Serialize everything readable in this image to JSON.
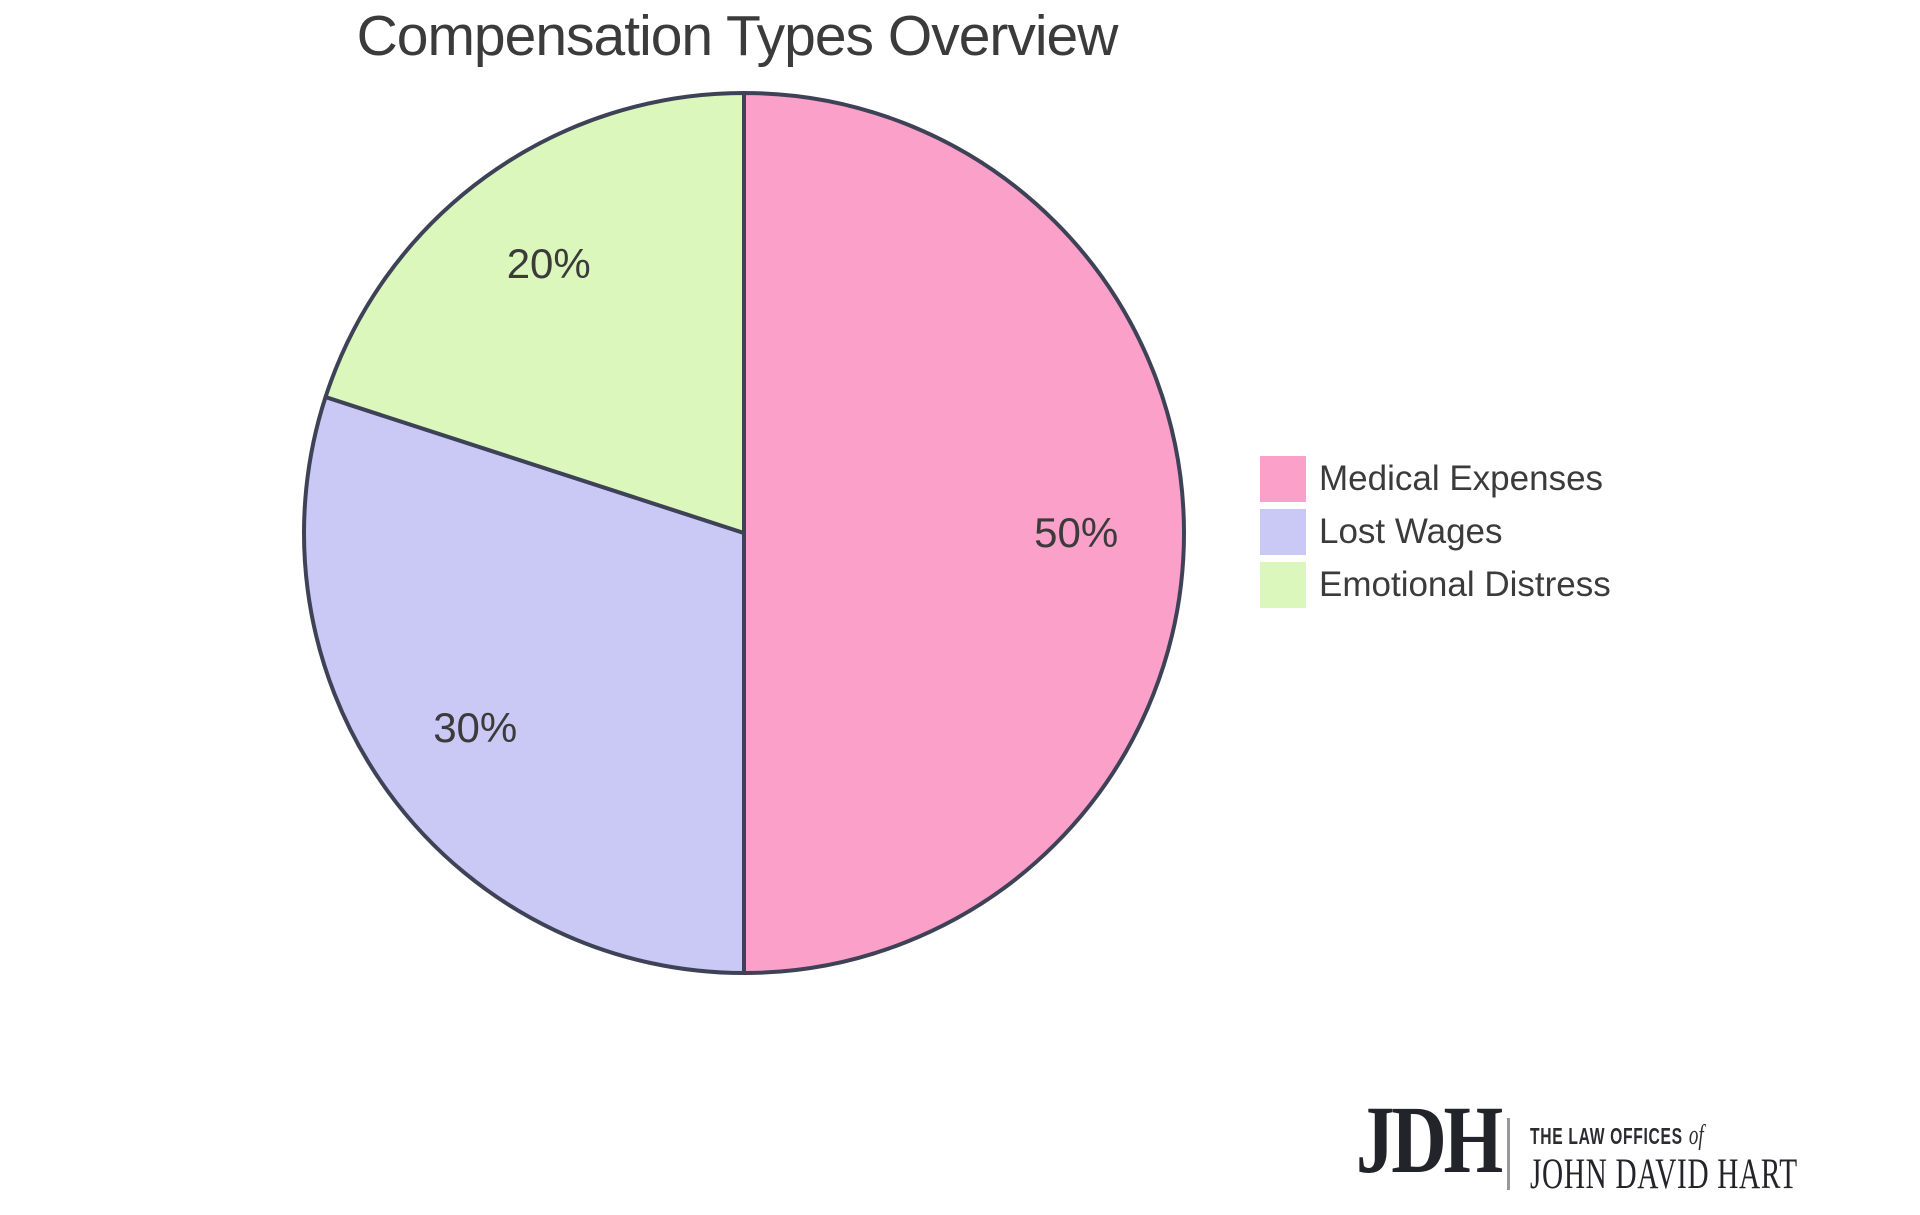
{
  "chart_data": {
    "type": "pie",
    "title": "Compensation Types Overview",
    "start_angle": "top",
    "direction": "clockwise",
    "slices": [
      {
        "label": "Medical Expenses",
        "value": 50,
        "pct_label": "50%",
        "color": "#FBA1C9"
      },
      {
        "label": "Lost Wages",
        "value": 30,
        "pct_label": "30%",
        "color": "#CAC8F5"
      },
      {
        "label": "Emotional Distress",
        "value": 20,
        "pct_label": "20%",
        "color": "#DCF7BC"
      }
    ],
    "edge_color": "#3E4257",
    "label_color": "#3B3B3B",
    "legend_position": "center right",
    "legend_entries": [
      "Medical Expenses",
      "Lost Wages",
      "Emotional Distress"
    ]
  },
  "branding": {
    "monogram": "JDH",
    "tagline_prefix": "THE LAW OFFICES",
    "tagline_of": "of",
    "firm_name": "JOHN DAVID HART"
  }
}
